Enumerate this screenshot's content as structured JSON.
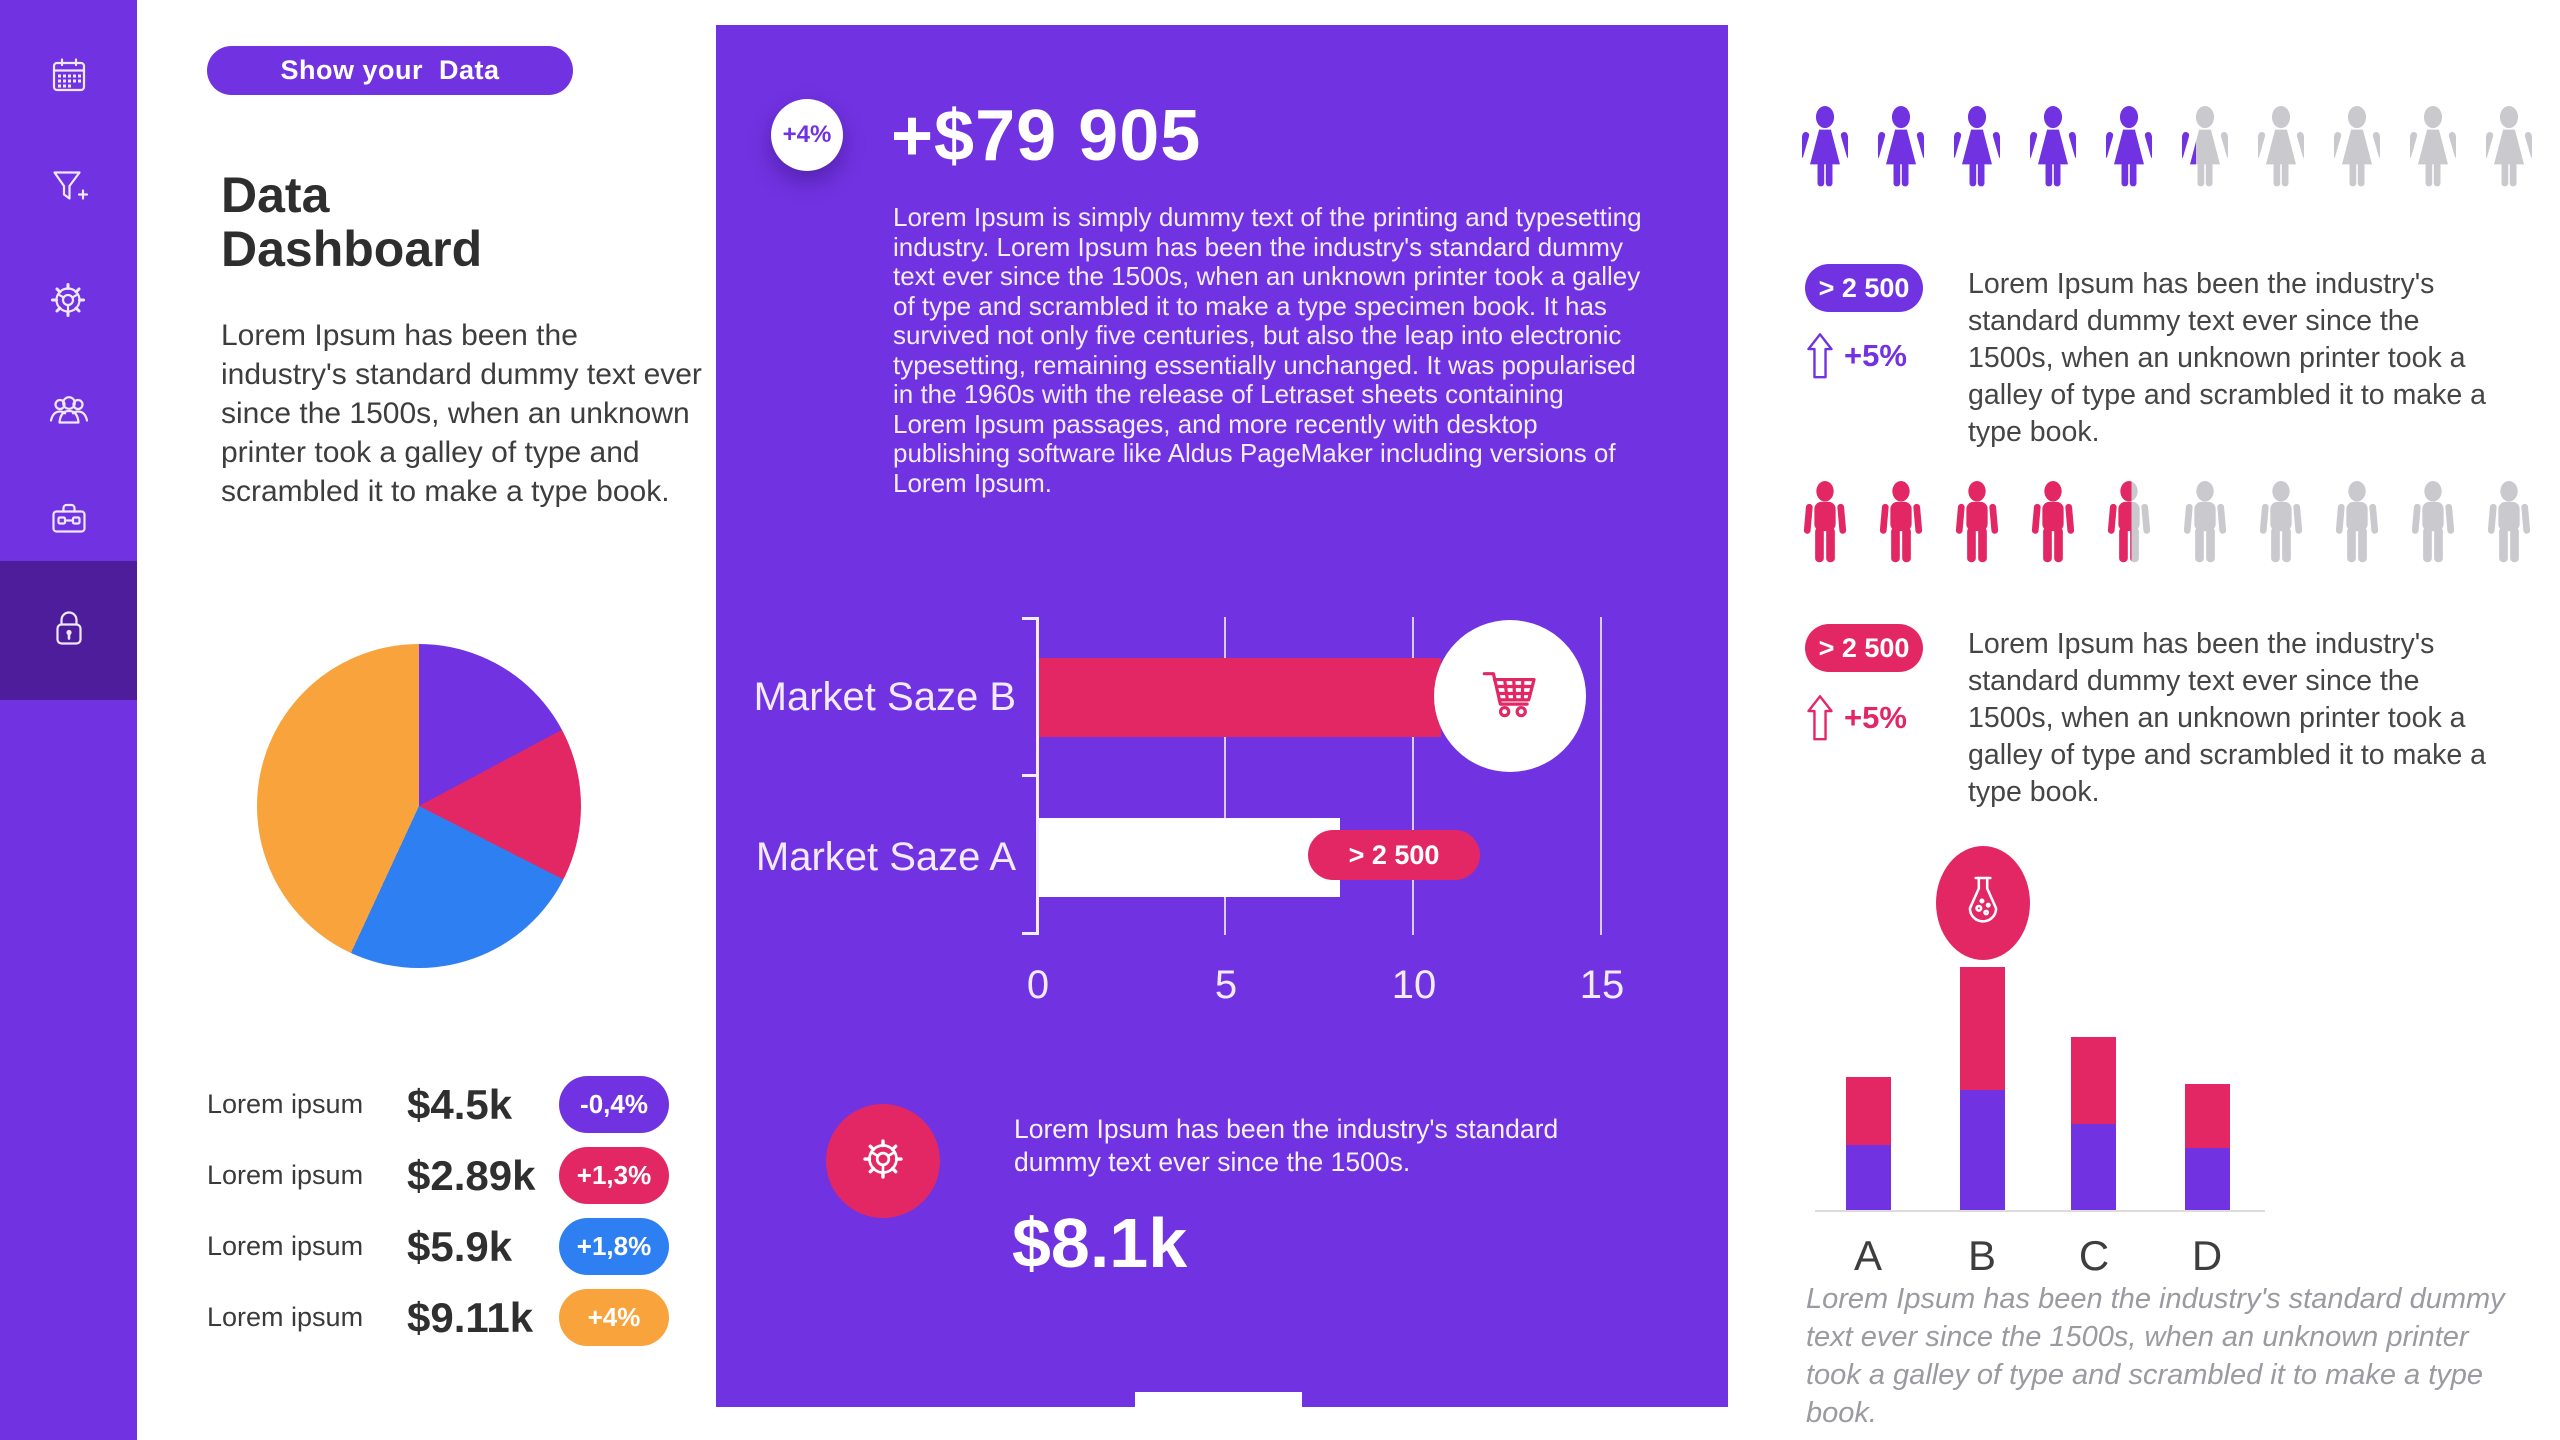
{
  "colors": {
    "purple": "#7132E1",
    "purple_dark": "#4E1D9B",
    "pink": "#E32765",
    "blue": "#2E7FF2",
    "orange": "#F8A33C",
    "gray_icon": "#C9C9CE",
    "white": "#FFFFFF"
  },
  "sidebar": {
    "items": [
      {
        "icon": "calendar",
        "active": false
      },
      {
        "icon": "filter-add",
        "active": false
      },
      {
        "icon": "gear",
        "active": false
      },
      {
        "icon": "users",
        "active": false
      },
      {
        "icon": "briefcase",
        "active": false
      },
      {
        "icon": "lock",
        "active": true
      }
    ]
  },
  "left": {
    "button_label": "Show your  Data",
    "title": "Data\nDashboard",
    "paragraph": "Lorem Ipsum has been the industry's standard dummy text ever since the 1500s, when an unknown printer took a galley of type and scrambled it to make a type book.",
    "kpis": [
      {
        "label": "Lorem ipsum",
        "value": "$4.5k",
        "delta": "-0,4%",
        "color": "#7132E1"
      },
      {
        "label": "Lorem ipsum",
        "value": "$2.89k",
        "delta": "+1,3%",
        "color": "#E32765"
      },
      {
        "label": "Lorem ipsum",
        "value": "$5.9k",
        "delta": "+1,8%",
        "color": "#2E7FF2"
      },
      {
        "label": "Lorem ipsum",
        "value": "$9.11k",
        "delta": "+4%",
        "color": "#F8A33C"
      }
    ]
  },
  "panel": {
    "badge": "+4%",
    "headline": "+$79 905",
    "paragraph": "Lorem Ipsum is simply dummy text of the printing and typesetting industry. Lorem Ipsum has been the industry's standard dummy text ever since the 1500s, when an unknown printer took a galley of type and scrambled it to make a type specimen book. It has survived not only five centuries, but also the leap into electronic typesetting, remaining essentially unchanged. It was popularised in the 1960s with the release of Letraset sheets containing Lorem Ipsum passages, and more recently with desktop publishing software like Aldus PageMaker including versions of Lorem Ipsum.",
    "note": "Lorem Ipsum has been the industry's standard dummy text ever since the 1500s.",
    "amount": "$8.1k"
  },
  "right": {
    "pictographs": [
      {
        "type": "woman",
        "total": 10,
        "filled": 5.3,
        "color": "#7132E1",
        "gray": "#C9C9CE"
      },
      {
        "type": "man",
        "total": 10,
        "filled": 4.55,
        "color": "#E32765",
        "gray": "#C9C9CE"
      }
    ],
    "stats": [
      {
        "badge": "> 2 500",
        "delta": "+5%",
        "color": "#7132E1",
        "text": "Lorem Ipsum has been the industry's standard dummy text ever since the 1500s, when an unknown printer took a galley of type and scrambled it to make a type book."
      },
      {
        "badge": "> 2 500",
        "delta": "+5%",
        "color": "#E32765",
        "text": "Lorem Ipsum has been the industry's standard dummy text ever since the 1500s, when an unknown printer took a galley of type and scrambled it to make a type book."
      }
    ],
    "caption": "Lorem Ipsum has been the industry's standard dummy text ever since the 1500s, when an unknown printer took a galley of type and scrambled it to make a type book."
  },
  "chart_data": [
    {
      "type": "pie",
      "title": "",
      "slices": [
        {
          "label": "purple",
          "value": 17.2,
          "color": "#7132E1"
        },
        {
          "label": "pink",
          "value": 15.3,
          "color": "#E32765"
        },
        {
          "label": "blue",
          "value": 24.4,
          "color": "#2E7FF2"
        },
        {
          "label": "orange",
          "value": 43.1,
          "color": "#F8A33C"
        }
      ],
      "legend": false
    },
    {
      "type": "bar",
      "orientation": "horizontal",
      "categories": [
        "Market Saze B",
        "Market Saze A"
      ],
      "values": [
        10.7,
        8
      ],
      "colors": [
        "#E32765",
        "#FFFFFF"
      ],
      "xticks": [
        "0",
        "5",
        "10",
        "15"
      ],
      "xmax": 15,
      "annotation": "> 2 500",
      "grid": true
    },
    {
      "type": "bar",
      "stacked": true,
      "categories": [
        "A",
        "B",
        "C",
        "D"
      ],
      "series": [
        {
          "name": "purple",
          "color": "#7132E1",
          "values": [
            6.5,
            12.0,
            8.6,
            6.2
          ]
        },
        {
          "name": "pink",
          "color": "#E32765",
          "values": [
            6.8,
            12.3,
            8.7,
            6.4
          ]
        }
      ],
      "ylim": [
        0,
        25
      ],
      "grid": false
    }
  ]
}
